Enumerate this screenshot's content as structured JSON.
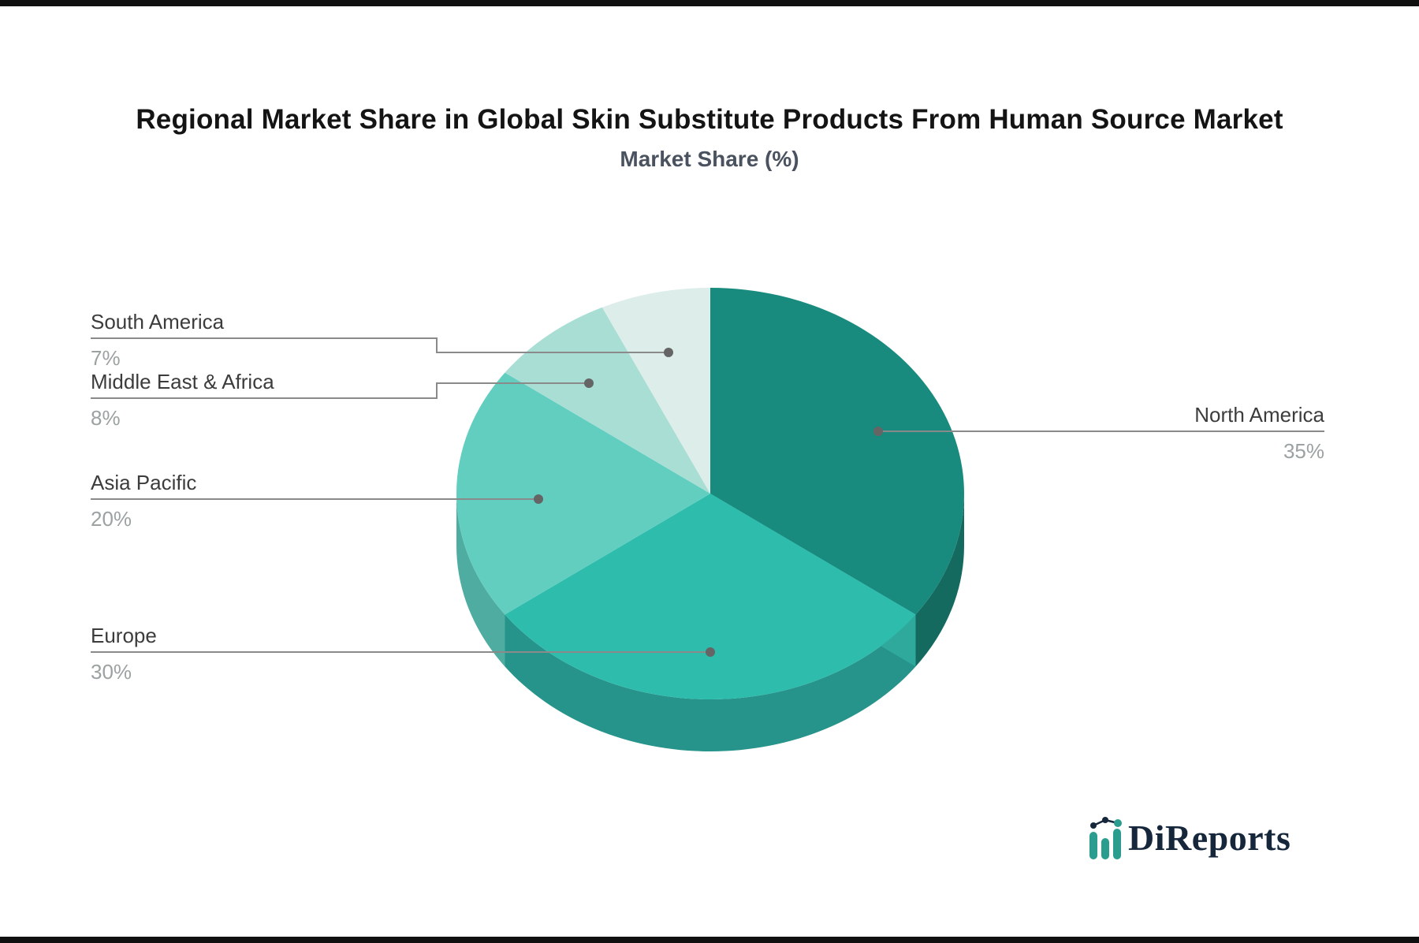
{
  "header": {
    "title": "Regional Market Share in Global Skin Substitute Products From Human Source Market",
    "subtitle": "Market Share (%)"
  },
  "chart_data": {
    "type": "pie",
    "title": "Regional Market Share in Global Skin Substitute Products From Human Source Market",
    "subtitle": "Market Share (%)",
    "unit": "%",
    "total": 100,
    "effect": "3d-depth",
    "rotation": "starts at 12 o'clock, clockwise",
    "legend_position": "none (outside labels with leader lines)",
    "slices": [
      {
        "label": "North America",
        "value": 35,
        "value_label": "35%",
        "color_top": "#188B7E",
        "color_side": "#156A60"
      },
      {
        "label": "Europe",
        "value": 30,
        "value_label": "30%",
        "color_top": "#2EBCAD",
        "color_side": "#26948A"
      },
      {
        "label": "Asia Pacific",
        "value": 20,
        "value_label": "20%",
        "color_top": "#62CEC0",
        "color_side": "#4EACA1"
      },
      {
        "label": "Middle East & Africa",
        "value": 8,
        "value_label": "8%",
        "color_top": "#A9DED5",
        "color_side": "#8FCDC2"
      },
      {
        "label": "South America",
        "value": 7,
        "value_label": "7%",
        "color_top": "#DDEDEA",
        "color_side": "#C4DDD8"
      }
    ],
    "leader_line_color": "#8A8A8A",
    "leader_dot_color": "#656565",
    "label_text_color": "#3C3C3C",
    "value_text_color": "#9CA1A1"
  },
  "logo": {
    "text": "DiReports",
    "icon": "bar-line-chart-icon",
    "text_color": "#16263B",
    "icon_color": "#2A9D8F"
  }
}
